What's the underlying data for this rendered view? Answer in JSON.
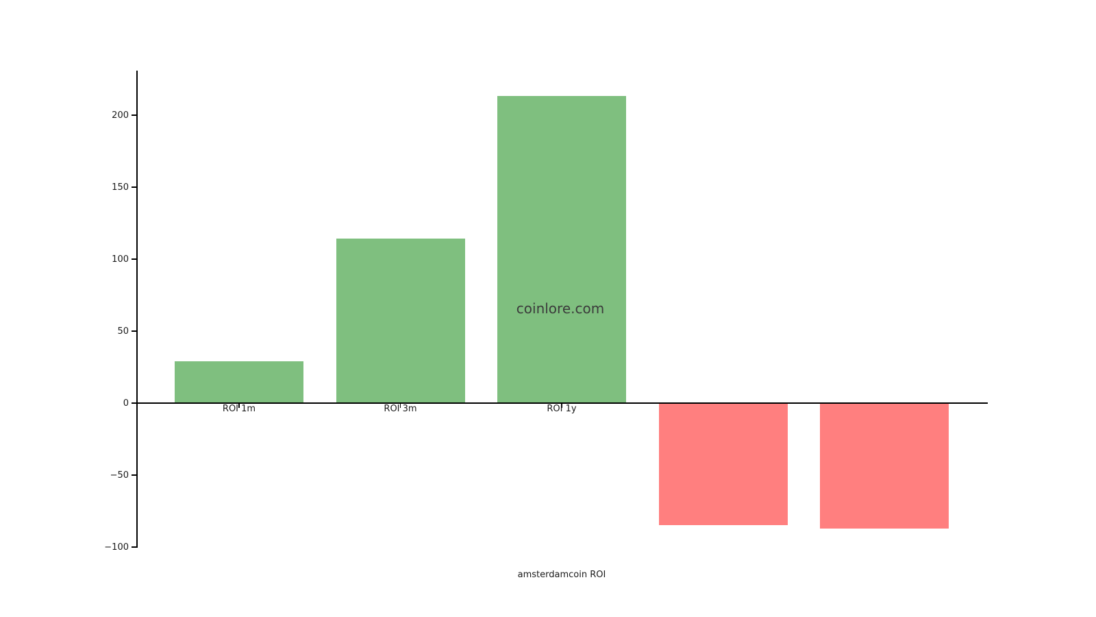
{
  "watermark": "coinlore.com",
  "chart_data": {
    "type": "bar",
    "title": "",
    "xlabel": "amsterdamcoin ROI",
    "ylabel": "",
    "categories": [
      "ROI 1m",
      "ROI 3m",
      "ROI 1y",
      "",
      ""
    ],
    "values": [
      29,
      114.3,
      213.3,
      -84.3,
      -86.7
    ],
    "yticks": [
      -100,
      -50,
      0,
      50,
      100,
      150,
      200
    ],
    "ylim": [
      -104,
      231
    ],
    "grid": false,
    "legend": "none",
    "colors": {
      "positive_bar": "#7fbf7f",
      "negative_bar": "#ff7f7f",
      "axis": "#000000",
      "tick_text": "#1a1a1a",
      "watermark_text": "#3b3b3b"
    }
  }
}
